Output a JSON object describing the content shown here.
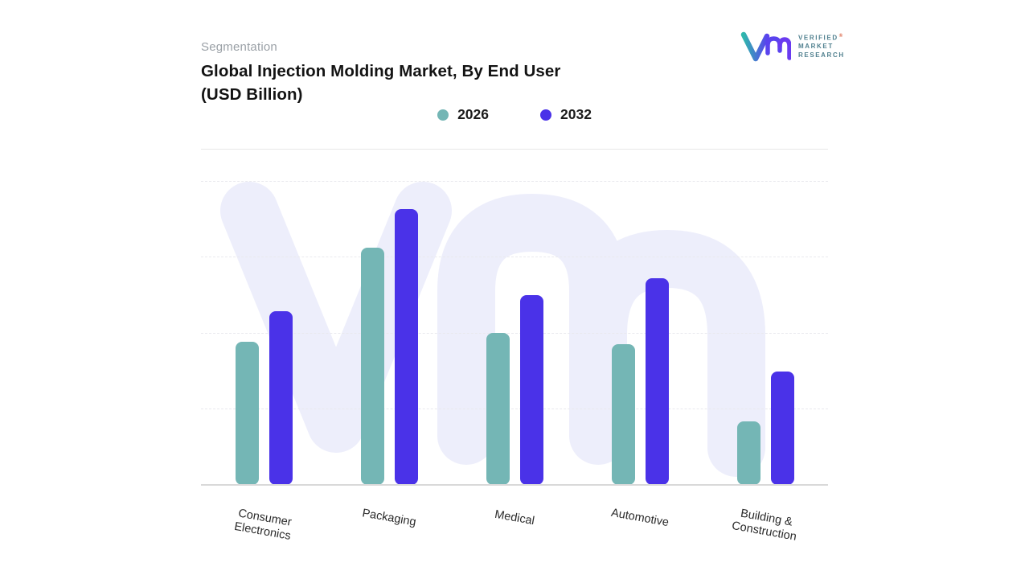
{
  "page": {
    "eyebrow": "Segmentation",
    "title_line1": "Global Injection Molding Market, By End User",
    "title_line2": "(USD Billion)"
  },
  "logo": {
    "lines": [
      "VERIFIED",
      "MARKET",
      "RESEARCH"
    ],
    "registered_mark": "®",
    "gradient_start": "#2FB7AC",
    "gradient_end": "#5A43EE",
    "text_color": "#50808F"
  },
  "watermark": {
    "text": "Vm",
    "color": "#EDEEFB"
  },
  "chart_data": {
    "type": "bar",
    "title": "Global Injection Molding Market, By End User (USD Billion)",
    "categories": [
      "Consumer\nElectronics",
      "Packaging",
      "Medical",
      "Automotive",
      "Building &\nConstruction"
    ],
    "series": [
      {
        "name": "2026",
        "color": "#74B6B5",
        "values": [
          52,
          86,
          55,
          51,
          23
        ]
      },
      {
        "name": "2032",
        "color": "#4A32E8",
        "values": [
          63,
          100,
          69,
          75,
          41
        ]
      }
    ],
    "xlabel": "",
    "ylabel": "",
    "ylim": [
      0,
      110
    ],
    "axis_values_shown": false,
    "grid": "dashed-horizontal",
    "legend_position": "top-center",
    "bar_corner_radius": 8
  }
}
